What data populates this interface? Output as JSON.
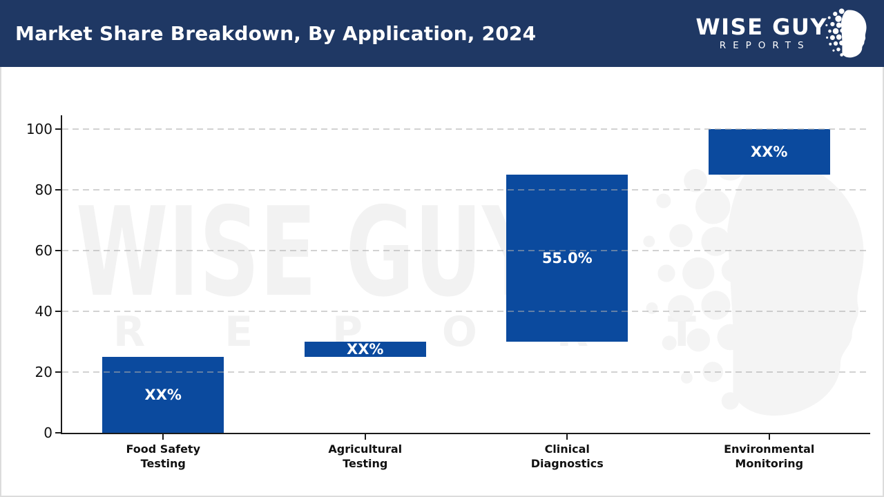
{
  "header": {
    "title": "Market Share Breakdown, By Application, 2024",
    "brand": {
      "name": "WISE GUY",
      "sub": "REPORTS"
    },
    "bg_color": "#1f3864"
  },
  "watermark": {
    "line1": "WISE GUY",
    "line2": "R E P O R T S"
  },
  "chart_data": {
    "type": "bar",
    "variant": "waterfall",
    "title": "Market Share Breakdown, By Application, 2024",
    "categories": [
      "Food Safety Testing",
      "Agricultural Testing",
      "Clinical Diagnostics",
      "Environmental Monitoring"
    ],
    "category_lines": [
      [
        "Food Safety",
        "Testing"
      ],
      [
        "Agricultural",
        "Testing"
      ],
      [
        "Clinical",
        "Diagnostics"
      ],
      [
        "Environmental",
        "Monitoring"
      ]
    ],
    "segments": [
      {
        "category": "Food Safety Testing",
        "start": 0,
        "end": 25,
        "value_label": "XX%"
      },
      {
        "category": "Agricultural Testing",
        "start": 25,
        "end": 30,
        "value_label": "XX%"
      },
      {
        "category": "Clinical Diagnostics",
        "start": 30,
        "end": 85,
        "value_label": "55.0%"
      },
      {
        "category": "Environmental Monitoring",
        "start": 85,
        "end": 100,
        "value_label": "XX%"
      }
    ],
    "values_pct": [
      25,
      5,
      55,
      15
    ],
    "ylim": [
      0,
      100
    ],
    "yticks": [
      0,
      20,
      40,
      60,
      80,
      100
    ],
    "xlabel": "",
    "ylabel": "",
    "legend": "none",
    "grid": "horizontal dashed, drawn over bars",
    "bar_color": "#0b4a9e",
    "value_label_color": "#ffffff"
  }
}
